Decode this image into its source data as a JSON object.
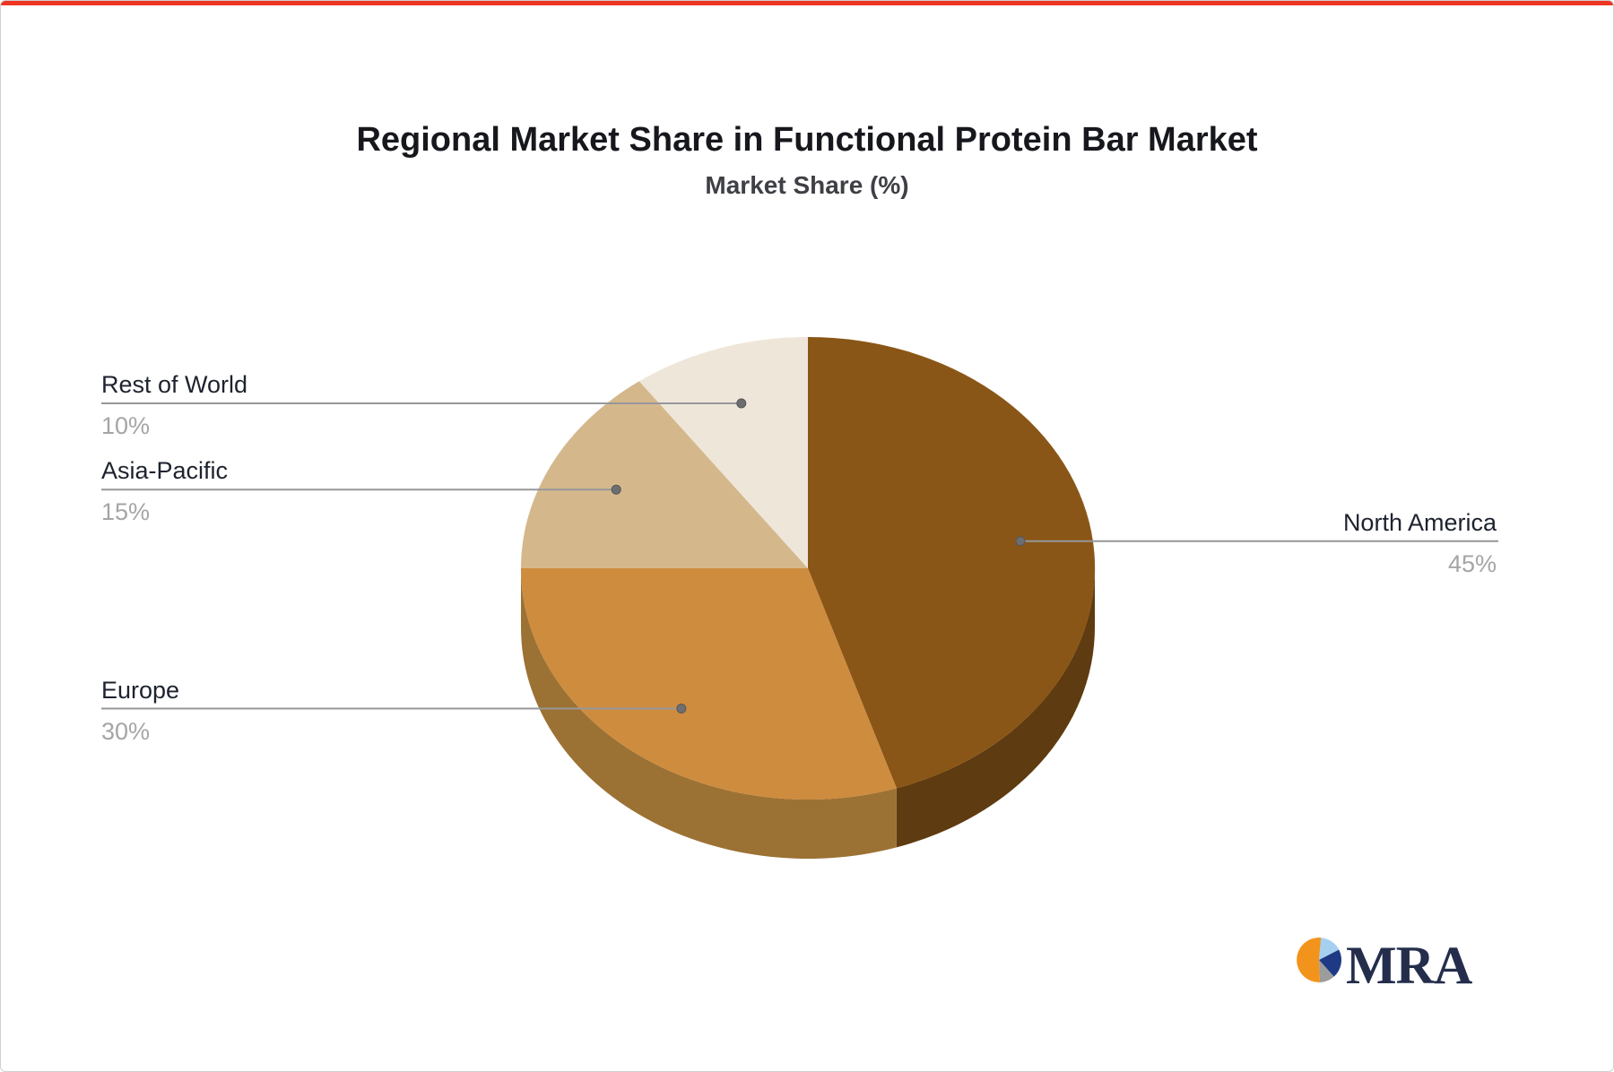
{
  "title": "Regional Market Share in Functional Protein Bar Market",
  "subtitle": "Market Share (%)",
  "frame": {
    "top_bar_color": "#ee3524"
  },
  "chart_data": {
    "type": "pie",
    "style": "3d",
    "title": "Regional Market Share in Functional Protein Bar Market",
    "subtitle": "Market Share (%)",
    "unit": "%",
    "start_angle_deg": 90,
    "direction": "clockwise",
    "legend_position": "callout-labels",
    "leader_line_color": "#97979b",
    "leader_dot_color": "#6e6e70",
    "label_color": "#1d222e",
    "value_color": "#a5a5a8",
    "slices": [
      {
        "label": "North America",
        "value": 45,
        "display": "45%",
        "color": "#8A5617",
        "side_color": "#5E3B10",
        "label_side": "right"
      },
      {
        "label": "Europe",
        "value": 30,
        "display": "30%",
        "color": "#CE8C3E",
        "side_color": "#9C7134",
        "label_side": "left"
      },
      {
        "label": "Asia-Pacific",
        "value": 15,
        "display": "15%",
        "color": "#D4B88C",
        "side_color": "#A8936B",
        "label_side": "left"
      },
      {
        "label": "Rest of World",
        "value": 10,
        "display": "10%",
        "color": "#EFE6DA",
        "side_color": "#C9BFB0",
        "label_side": "left"
      }
    ]
  },
  "logo": {
    "text": "MRA",
    "text_color": "#242e4c",
    "icon_start_angle_deg": 85,
    "icon_slices": [
      {
        "name": "light-blue",
        "color": "#A6D0F0",
        "fraction": 0.16
      },
      {
        "name": "navy",
        "color": "#1E3A85",
        "fraction": 0.21
      },
      {
        "name": "gray",
        "color": "#9C9C9C",
        "fraction": 0.11
      },
      {
        "name": "orange",
        "color": "#F2941C",
        "fraction": 0.52
      }
    ]
  }
}
